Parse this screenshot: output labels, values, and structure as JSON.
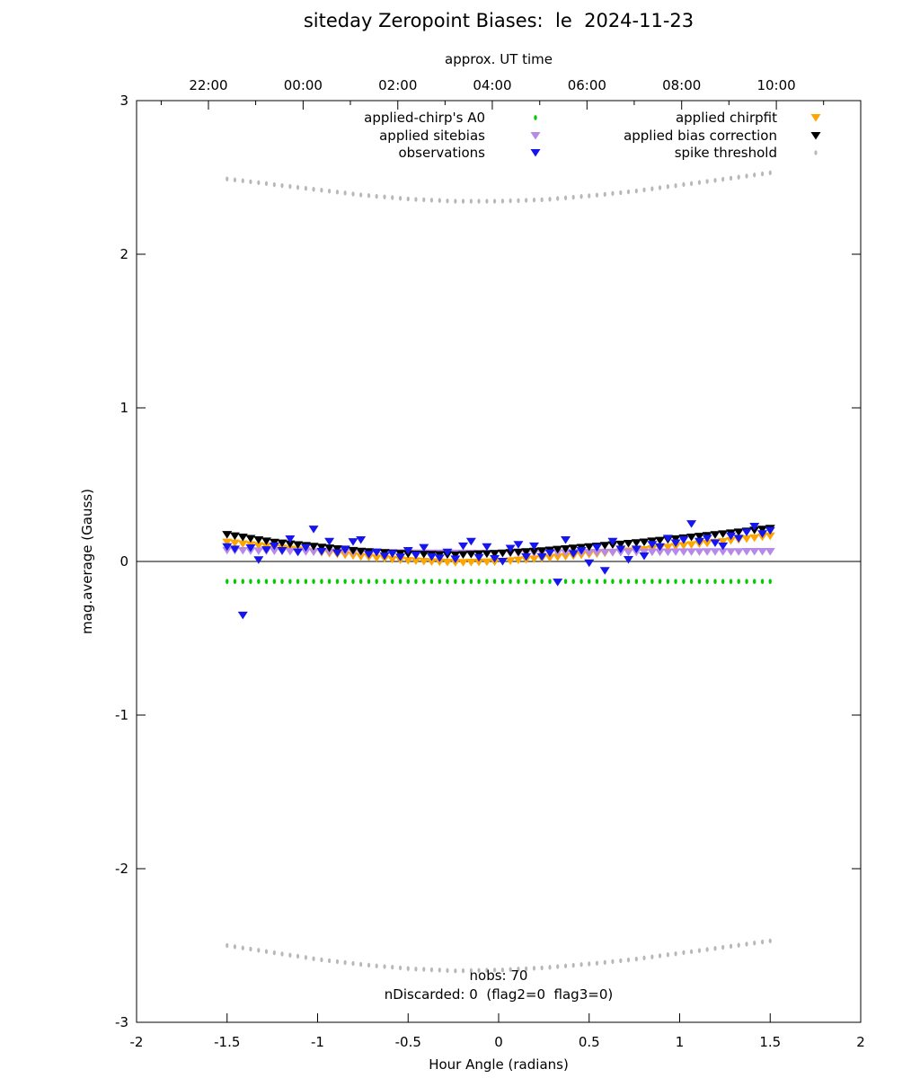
{
  "title": "siteday Zeropoint Biases:  le  2024-11-23",
  "annotations": {
    "nobs": "nobs: 70",
    "ndiscarded": "nDiscarded: 0  (flag2=0  flag3=0)"
  },
  "axes": {
    "top": {
      "label": "approx. UT time",
      "ticks": [
        {
          "label": "22:00",
          "x": -1.603
        },
        {
          "label": "00:00",
          "x": -1.08
        },
        {
          "label": "02:00",
          "x": -0.557
        },
        {
          "label": "04:00",
          "x": -0.035
        },
        {
          "label": "06:00",
          "x": 0.488
        },
        {
          "label": "08:00",
          "x": 1.011
        },
        {
          "label": "10:00",
          "x": 1.534
        }
      ],
      "minor_ticks": [
        -1.864,
        -1.342,
        -0.819,
        -0.296,
        0.227,
        0.749,
        1.272,
        1.795
      ]
    },
    "bottom": {
      "label": "Hour Angle (radians)",
      "ticks": [
        {
          "label": "-2",
          "x": -2
        },
        {
          "label": "-1.5",
          "x": -1.5
        },
        {
          "label": "-1",
          "x": -1
        },
        {
          "label": "-0.5",
          "x": -0.5
        },
        {
          "label": "0",
          "x": 0
        },
        {
          "label": "0.5",
          "x": 0.5
        },
        {
          "label": "1",
          "x": 1
        },
        {
          "label": "1.5",
          "x": 1.5
        },
        {
          "label": "2",
          "x": 2
        }
      ]
    },
    "left": {
      "label": "mag.average (Gauss)",
      "ticks": [
        {
          "label": "-3",
          "y": -3
        },
        {
          "label": "-2",
          "y": -2
        },
        {
          "label": "-1",
          "y": -1
        },
        {
          "label": "0",
          "y": 0
        },
        {
          "label": "1",
          "y": 1
        },
        {
          "label": "2",
          "y": 2
        },
        {
          "label": "3",
          "y": 3
        }
      ]
    }
  },
  "legend": {
    "columns": [
      {
        "items": [
          {
            "label": "applied-chirp's A0",
            "series": "a0"
          },
          {
            "label": "applied sitebias",
            "series": "sitebias"
          },
          {
            "label": "observations",
            "series": "observations"
          }
        ]
      },
      {
        "items": [
          {
            "label": "applied chirpfit",
            "series": "chirpfit"
          },
          {
            "label": "applied bias correction",
            "series": "bias_correction"
          },
          {
            "label": "spike threshold",
            "series": "spike_upper"
          }
        ]
      }
    ]
  },
  "chart_data": {
    "type": "scatter",
    "title": "siteday Zeropoint Biases:  le  2024-11-23",
    "xlabel": "Hour Angle (radians)",
    "x2label": "approx. UT time",
    "ylabel": "mag.average (Gauss)",
    "xlim": [
      -2,
      2
    ],
    "ylim": [
      -3,
      3
    ],
    "grid": false,
    "legend_position": "top-inside-two-columns",
    "zero_line": true,
    "x": [
      -1.5,
      -1.457,
      -1.413,
      -1.37,
      -1.326,
      -1.283,
      -1.239,
      -1.196,
      -1.152,
      -1.109,
      -1.065,
      -1.022,
      -0.978,
      -0.935,
      -0.891,
      -0.848,
      -0.804,
      -0.761,
      -0.717,
      -0.674,
      -0.63,
      -0.587,
      -0.543,
      -0.5,
      -0.457,
      -0.413,
      -0.37,
      -0.326,
      -0.283,
      -0.239,
      -0.196,
      -0.152,
      -0.109,
      -0.065,
      -0.022,
      0.022,
      0.065,
      0.109,
      0.152,
      0.196,
      0.239,
      0.283,
      0.326,
      0.37,
      0.413,
      0.457,
      0.5,
      0.543,
      0.587,
      0.63,
      0.674,
      0.717,
      0.761,
      0.804,
      0.848,
      0.891,
      0.935,
      0.978,
      1.022,
      1.065,
      1.109,
      1.152,
      1.196,
      1.239,
      1.283,
      1.326,
      1.37,
      1.413,
      1.457,
      1.5
    ],
    "series": [
      {
        "id": "a0",
        "name": "applied-chirp's A0",
        "marker": "dot",
        "color": "#00cc00",
        "size": 1.7,
        "y_const": -0.13
      },
      {
        "id": "chirpfit",
        "name": "applied chirpfit",
        "marker": "triangle-down",
        "color": "#ffa500",
        "size": 5,
        "y": [
          0.125,
          0.119,
          0.114,
          0.108,
          0.102,
          0.097,
          0.091,
          0.086,
          0.08,
          0.074,
          0.069,
          0.062,
          0.057,
          0.052,
          0.047,
          0.042,
          0.037,
          0.031,
          0.027,
          0.022,
          0.018,
          0.013,
          0.009,
          0.005,
          0.003,
          0.0,
          -0.002,
          -0.004,
          -0.006,
          -0.008,
          -0.007,
          -0.006,
          -0.005,
          -0.004,
          -0.003,
          0.0,
          0.004,
          0.008,
          0.011,
          0.015,
          0.019,
          0.023,
          0.028,
          0.032,
          0.036,
          0.041,
          0.045,
          0.049,
          0.054,
          0.058,
          0.062,
          0.067,
          0.071,
          0.076,
          0.082,
          0.087,
          0.092,
          0.097,
          0.103,
          0.108,
          0.113,
          0.118,
          0.124,
          0.129,
          0.135,
          0.141,
          0.147,
          0.153,
          0.159,
          0.165
        ]
      },
      {
        "id": "sitebias",
        "name": "applied sitebias",
        "marker": "triangle-down",
        "color": "#b78aea",
        "size": 5,
        "y": [
          0.072,
          0.071,
          0.07,
          0.069,
          0.068,
          0.068,
          0.067,
          0.066,
          0.065,
          0.064,
          0.063,
          0.062,
          0.062,
          0.061,
          0.06,
          0.06,
          0.059,
          0.058,
          0.058,
          0.057,
          0.057,
          0.056,
          0.056,
          0.055,
          0.055,
          0.054,
          0.054,
          0.054,
          0.053,
          0.053,
          0.053,
          0.053,
          0.052,
          0.052,
          0.052,
          0.052,
          0.053,
          0.053,
          0.054,
          0.054,
          0.055,
          0.055,
          0.056,
          0.056,
          0.057,
          0.057,
          0.058,
          0.058,
          0.059,
          0.059,
          0.059,
          0.06,
          0.06,
          0.06,
          0.061,
          0.061,
          0.061,
          0.062,
          0.062,
          0.062,
          0.062,
          0.063,
          0.063,
          0.063,
          0.063,
          0.063,
          0.064,
          0.064,
          0.064,
          0.064
        ]
      },
      {
        "id": "bias_correction",
        "name": "applied bias correction",
        "marker": "triangle-down",
        "color": "#000000",
        "size": 5,
        "y": [
          0.175,
          0.166,
          0.158,
          0.149,
          0.14,
          0.132,
          0.124,
          0.119,
          0.113,
          0.108,
          0.103,
          0.098,
          0.092,
          0.087,
          0.082,
          0.077,
          0.071,
          0.066,
          0.063,
          0.06,
          0.057,
          0.054,
          0.051,
          0.048,
          0.047,
          0.046,
          0.045,
          0.044,
          0.043,
          0.042,
          0.044,
          0.046,
          0.048,
          0.049,
          0.051,
          0.054,
          0.057,
          0.06,
          0.063,
          0.066,
          0.069,
          0.073,
          0.078,
          0.082,
          0.086,
          0.091,
          0.095,
          0.099,
          0.104,
          0.108,
          0.112,
          0.117,
          0.121,
          0.126,
          0.132,
          0.137,
          0.142,
          0.147,
          0.153,
          0.158,
          0.163,
          0.168,
          0.174,
          0.179,
          0.185,
          0.191,
          0.197,
          0.203,
          0.209,
          0.215
        ]
      },
      {
        "id": "observations",
        "name": "observations",
        "marker": "triangle-down",
        "color": "#1515ef",
        "size": 5,
        "y": [
          0.095,
          0.08,
          -0.35,
          0.088,
          0.01,
          0.075,
          0.1,
          0.07,
          0.146,
          0.06,
          0.09,
          0.21,
          0.065,
          0.13,
          0.055,
          0.08,
          0.128,
          0.14,
          0.045,
          0.06,
          0.035,
          0.05,
          0.028,
          0.07,
          0.04,
          0.09,
          0.03,
          0.022,
          0.06,
          0.015,
          0.1,
          0.13,
          0.025,
          0.095,
          0.018,
          0.0,
          0.085,
          0.11,
          0.03,
          0.1,
          0.03,
          0.055,
          -0.135,
          0.14,
          0.05,
          0.07,
          -0.01,
          0.09,
          -0.06,
          0.13,
          0.08,
          0.012,
          0.08,
          0.035,
          0.11,
          0.095,
          0.15,
          0.12,
          0.14,
          0.245,
          0.13,
          0.15,
          0.12,
          0.1,
          0.165,
          0.15,
          0.19,
          0.228,
          0.18,
          0.2
        ]
      },
      {
        "id": "spike_upper",
        "name": "spike threshold",
        "marker": "dot",
        "color": "#b8b8b8",
        "size": 1.6,
        "y": [
          2.49,
          2.484,
          2.478,
          2.472,
          2.466,
          2.46,
          2.453,
          2.447,
          2.441,
          2.435,
          2.429,
          2.423,
          2.417,
          2.411,
          2.405,
          2.399,
          2.392,
          2.386,
          2.382,
          2.377,
          2.373,
          2.369,
          2.364,
          2.36,
          2.357,
          2.355,
          2.352,
          2.35,
          2.347,
          2.345,
          2.345,
          2.345,
          2.345,
          2.345,
          2.345,
          2.346,
          2.348,
          2.349,
          2.351,
          2.353,
          2.355,
          2.358,
          2.363,
          2.367,
          2.371,
          2.376,
          2.38,
          2.385,
          2.39,
          2.396,
          2.401,
          2.406,
          2.412,
          2.419,
          2.426,
          2.433,
          2.44,
          2.446,
          2.454,
          2.46,
          2.467,
          2.474,
          2.481,
          2.488,
          2.495,
          2.502,
          2.509,
          2.516,
          2.523,
          2.53
        ]
      },
      {
        "id": "spike_lower",
        "name": "spike threshold",
        "marker": "dot",
        "color": "#b8b8b8",
        "size": 1.6,
        "y": [
          -2.5,
          -2.508,
          -2.516,
          -2.523,
          -2.531,
          -2.539,
          -2.547,
          -2.555,
          -2.563,
          -2.57,
          -2.578,
          -2.586,
          -2.593,
          -2.599,
          -2.605,
          -2.611,
          -2.617,
          -2.623,
          -2.628,
          -2.633,
          -2.637,
          -2.641,
          -2.646,
          -2.65,
          -2.653,
          -2.655,
          -2.658,
          -2.66,
          -2.663,
          -2.665,
          -2.664,
          -2.663,
          -2.662,
          -2.661,
          -2.66,
          -2.659,
          -2.656,
          -2.653,
          -2.651,
          -2.648,
          -2.646,
          -2.642,
          -2.637,
          -2.633,
          -2.629,
          -2.624,
          -2.62,
          -2.615,
          -2.61,
          -2.604,
          -2.599,
          -2.594,
          -2.588,
          -2.581,
          -2.574,
          -2.567,
          -2.56,
          -2.554,
          -2.546,
          -2.54,
          -2.533,
          -2.526,
          -2.519,
          -2.512,
          -2.505,
          -2.498,
          -2.491,
          -2.484,
          -2.477,
          -2.47
        ]
      }
    ]
  }
}
